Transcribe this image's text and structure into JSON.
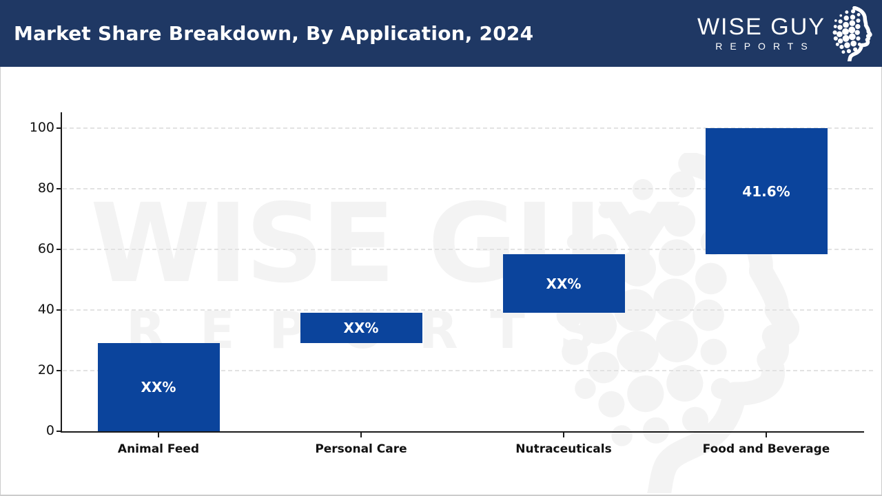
{
  "header": {
    "title": "Market Share Breakdown, By Application, 2024",
    "bg_color": "#1f3864",
    "logo": {
      "line1": "WISE GUY",
      "line2": "REPORTS"
    }
  },
  "watermark": {
    "line1": "WISE GUY",
    "line2": "REPORTS"
  },
  "chart_data": {
    "type": "bar",
    "subtype": "floating-breakdown-waterfall",
    "title": "Market Share Breakdown, By Application, 2024",
    "categories": [
      "Animal Feed",
      "Personal Care",
      "Nutraceuticals",
      "Food and Beverage"
    ],
    "series": [
      {
        "name": "Market Share %",
        "starts": [
          0,
          29,
          39,
          58.4
        ],
        "ends": [
          29,
          39,
          58.4,
          100
        ]
      }
    ],
    "bar_labels": [
      "XX%",
      "XX%",
      "XX%",
      "41.6%"
    ],
    "ylim": [
      0,
      100
    ],
    "yticks": [
      0,
      20,
      40,
      60,
      80,
      100
    ],
    "grid": "horizontal-dashed",
    "legend": "none",
    "bar_color": "#0b449c",
    "axis_color": "#1a1a1a",
    "grid_color": "#e2e2e2"
  },
  "colors": {
    "header_bg": "#1f3864",
    "bar_blue": "#0b449c",
    "watermark_gray": "#f3f3f3",
    "border_gray": "#cccccc"
  }
}
